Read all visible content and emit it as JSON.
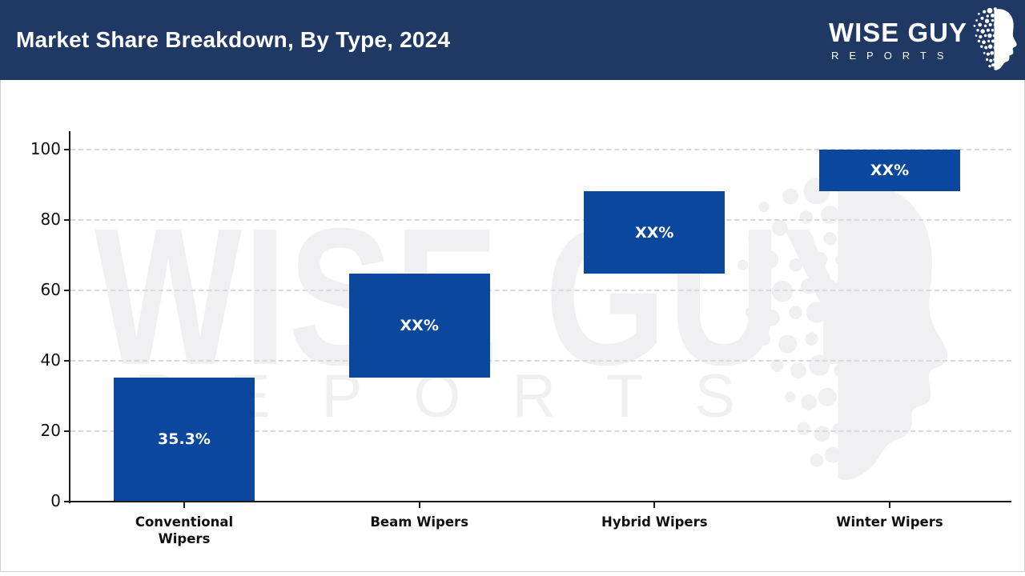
{
  "header": {
    "title": "Market Share Breakdown, By Type, 2024",
    "logo": {
      "wordmark": "WISE GUY",
      "subtext": "REPORTS"
    }
  },
  "watermark": {
    "wordmark": "WISE GUY",
    "subtext": "REPORTS"
  },
  "colors": {
    "header_bg": "#1f3864",
    "bar": "#0b479c",
    "gridline": "#d9d9d9",
    "axis": "#1a1a1a",
    "watermark": "#f0f0f3",
    "label_on_bar": "#ffffff"
  },
  "chart_data": {
    "type": "bar",
    "variant": "waterfall",
    "title": "Market Share Breakdown, By Type, 2024",
    "categories": [
      "Conventional Wipers",
      "Beam Wipers",
      "Hybrid Wipers",
      "Winter Wipers"
    ],
    "series": [
      {
        "name": "Market share (%)",
        "segments": [
          {
            "category": "Conventional Wipers",
            "start": 0,
            "end": 35.3,
            "label": "35.3%"
          },
          {
            "category": "Beam Wipers",
            "start": 35.3,
            "end": 64.7,
            "label": "XX%"
          },
          {
            "category": "Hybrid Wipers",
            "start": 64.7,
            "end": 88.2,
            "label": "XX%"
          },
          {
            "category": "Winter Wipers",
            "start": 88.2,
            "end": 100,
            "label": "XX%"
          }
        ]
      }
    ],
    "yticks": [
      0,
      20,
      40,
      60,
      80,
      100
    ],
    "ylim": [
      0,
      105
    ],
    "xlabel": "",
    "ylabel": "",
    "grid": "horizontal-dashed",
    "legend": false
  }
}
